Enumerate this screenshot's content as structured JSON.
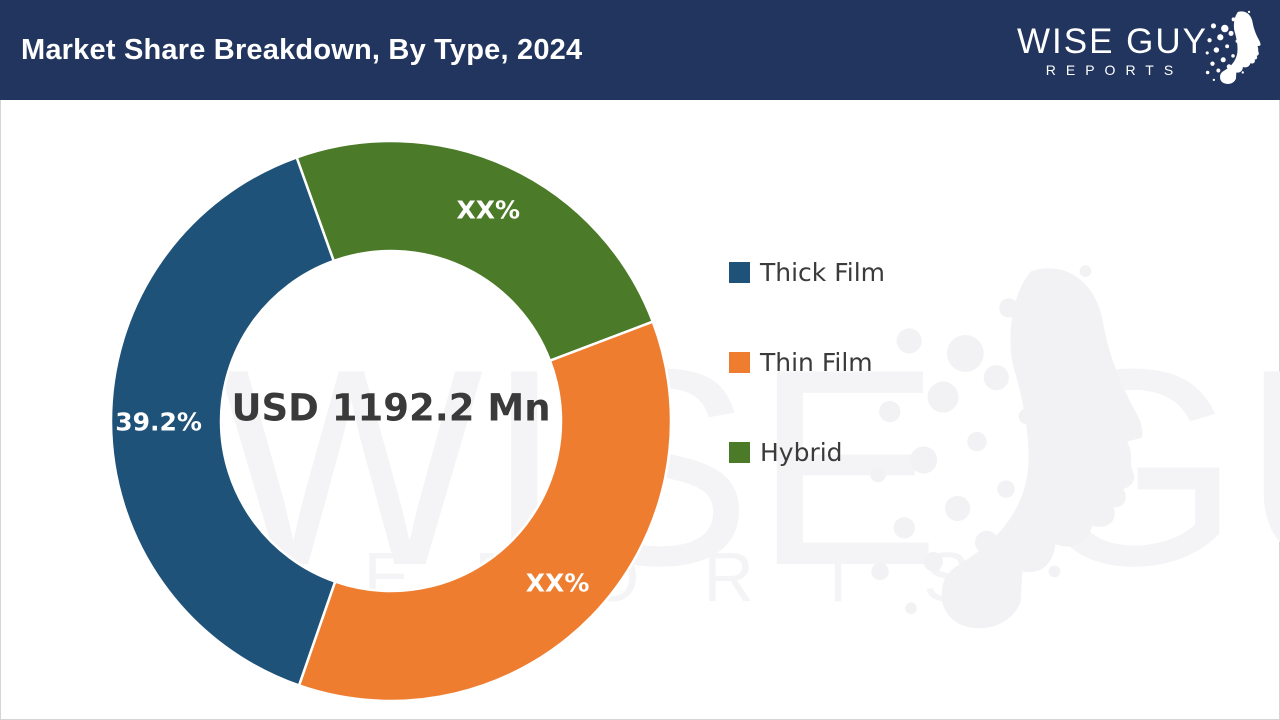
{
  "header": {
    "title": "Market Share Breakdown, By Type, 2024",
    "logo_line1": "WISE GUY",
    "logo_line2": "REPORTS"
  },
  "watermark": {
    "line1": "WISE GUY",
    "line2": "REPORTS"
  },
  "chart_data": {
    "type": "pie",
    "subtype": "donut",
    "title": "Market Share Breakdown, By Type, 2024",
    "center_label": "USD 1192.2 Mn",
    "segments": [
      {
        "label": "Thick Film",
        "percent": 39.2,
        "display_label": "39.2%",
        "color": "#1F5278"
      },
      {
        "label": "Thin Film",
        "percent": 36.1,
        "display_label": "XX%",
        "color": "#EE7D30"
      },
      {
        "label": "Hybrid",
        "percent": 24.7,
        "display_label": "XX%",
        "color": "#4B7A28"
      }
    ],
    "clockwise_draw_order": [
      "Hybrid",
      "Thin Film",
      "Thick Film"
    ],
    "start_angle_deg": -19.7,
    "donut_hole_ratio": 0.607,
    "label_radius_ratio": 0.83,
    "slice_gap_color": "#FFFFFF",
    "legend_position": "right"
  },
  "legend": {
    "items": [
      {
        "label": "Thick Film",
        "color": "#1F5278"
      },
      {
        "label": "Thin Film",
        "color": "#EE7D30"
      },
      {
        "label": "Hybrid",
        "color": "#4B7A28"
      }
    ]
  },
  "colors": {
    "header_bg": "#22355E",
    "center_text": "#3A3A3A",
    "legend_text": "#3B3B3B",
    "slice_label_text": "#FFFFFF",
    "watermark": "#F4F4F6"
  }
}
